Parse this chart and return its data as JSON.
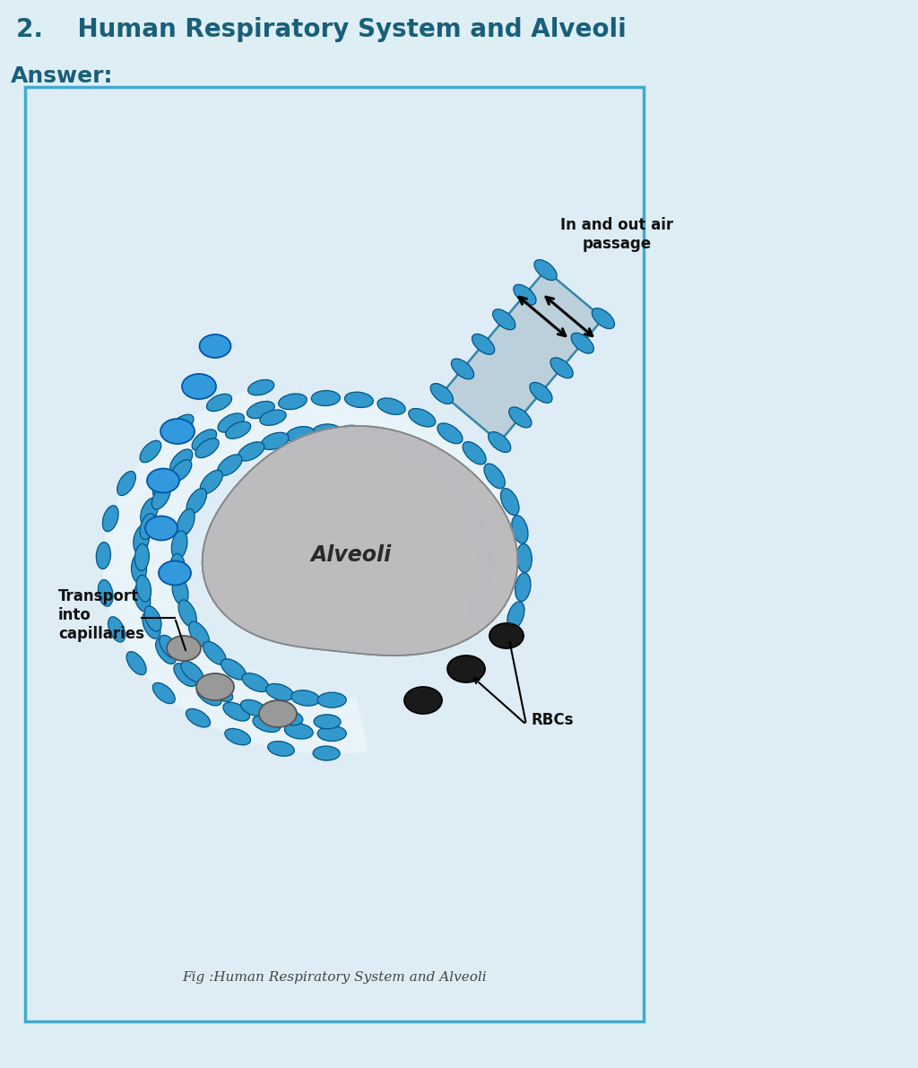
{
  "title": "2.    Human Respiratory System and Alveoli",
  "answer_label": "Answer:",
  "fig_caption": "Fig :Human Respiratory System and Alveoli",
  "label_alveoli": "Alveoli",
  "label_air": "In and out air\npassage",
  "label_transport": "Transport\ninto\ncapillaries",
  "label_rbcs": "RBCs",
  "bg_color": "#ddeef5",
  "box_bg": "#deedf5",
  "title_color": "#1a5f7a",
  "answer_color": "#1a5f7a",
  "capillary_cell_fill": "#3399cc",
  "capillary_cell_edge": "#005588",
  "capillary_bg": "#ffffff",
  "alveoli_fill": "#bcbcbf",
  "alveoli_edge": "#888888",
  "blue_rbc": "#3399dd",
  "blue_rbc_edge": "#0055aa",
  "gray_rbc": "#999999",
  "gray_rbc_edge": "#555555",
  "black_rbc": "#1a1a1a",
  "black_rbc_edge": "#000000"
}
